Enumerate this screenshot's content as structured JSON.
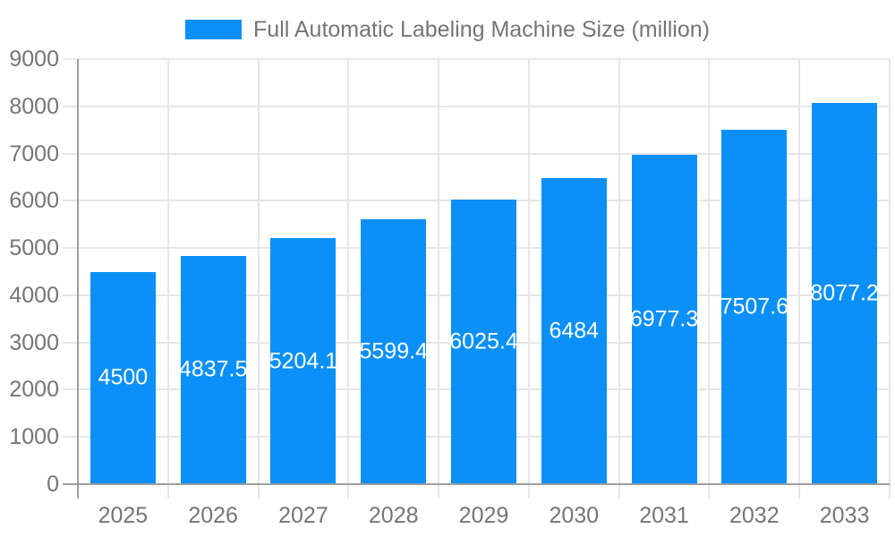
{
  "page": {
    "background": "#ffffff"
  },
  "legend": {
    "position": "top-center",
    "label": "Full Automatic Labeling Machine Size (million)"
  },
  "chart_data": {
    "type": "bar",
    "title": "Full Automatic Labeling Machine Size (million)",
    "categories": [
      "2025",
      "2026",
      "2027",
      "2028",
      "2029",
      "2030",
      "2031",
      "2032",
      "2033"
    ],
    "values": [
      4500,
      4837.5,
      5204.1,
      5599.4,
      6025.4,
      6484,
      6977.3,
      7507.6,
      8077.2
    ],
    "value_labels": [
      "4500",
      "4837.5",
      "5204.1",
      "5599.4",
      "6025.4",
      "6484",
      "6977.3",
      "7507.6",
      "8077.2"
    ],
    "xlabel": "",
    "ylabel": "",
    "ylim": [
      0,
      9000
    ],
    "ytick_step": 1000,
    "ytick_labels": [
      "0",
      "1000",
      "2000",
      "3000",
      "4000",
      "5000",
      "6000",
      "7000",
      "8000",
      "9000"
    ],
    "grid": true,
    "legend_position": "top-center",
    "colors": {
      "bar": "#0a90f8",
      "value_label": "#ffffff",
      "axis": "#9e9e9e",
      "gridline": "#e6e6e6",
      "tick_text": "#757575",
      "legend_text": "#757575",
      "background": "#ffffff"
    }
  }
}
